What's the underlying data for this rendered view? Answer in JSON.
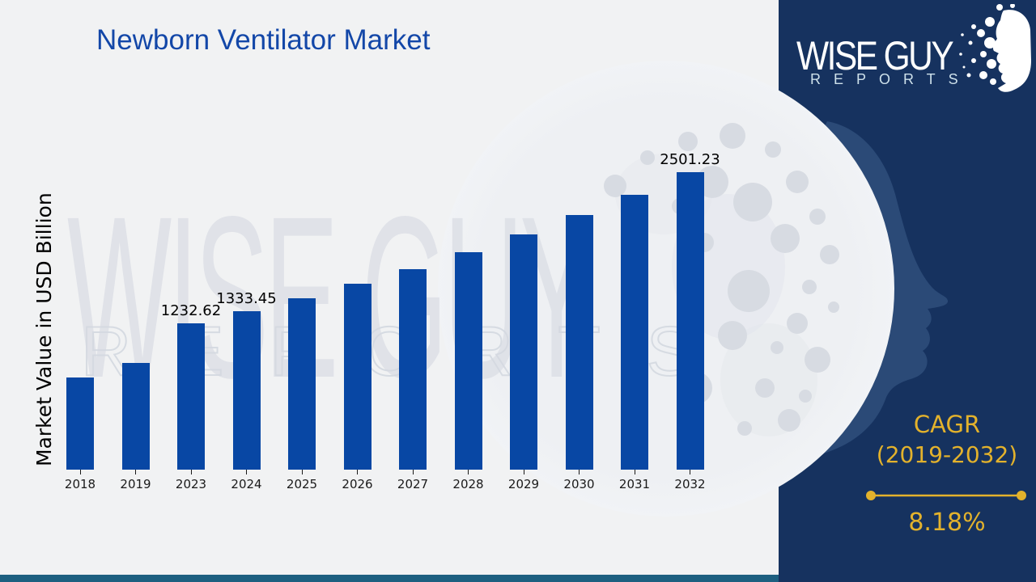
{
  "page": {
    "title": "Newborn Ventilator Market",
    "title_color": "#1347a8",
    "background": "#f1f2f3",
    "navy": "#16325f",
    "teal": "#1d5f80",
    "yellow": "#e3b22c"
  },
  "watermark": {
    "line1": "WISE GUY",
    "line2": "REPORTS"
  },
  "logo": {
    "wordmark": "WISE GUY",
    "subtitle": "REPORTS"
  },
  "cagr": {
    "label": "CAGR",
    "range": "(2019-2032)",
    "value": "8.18%"
  },
  "chart_data": {
    "type": "bar",
    "title": "Newborn Ventilator Market",
    "xlabel": "",
    "ylabel": "Market Value in USD Billion",
    "categories": [
      "2018",
      "2019",
      "2023",
      "2024",
      "2025",
      "2026",
      "2027",
      "2028",
      "2029",
      "2030",
      "2031",
      "2032"
    ],
    "values": [
      776,
      900,
      1232.62,
      1333.45,
      1443,
      1561,
      1688,
      1826,
      1976,
      2137,
      2312,
      2501.23
    ],
    "data_labels": {
      "2023": "1232.62",
      "2024": "1333.45",
      "2032": "2501.23"
    },
    "bar_color": "#0847a4",
    "ylim": [
      0,
      2700
    ],
    "grid": false,
    "legend": "none"
  }
}
